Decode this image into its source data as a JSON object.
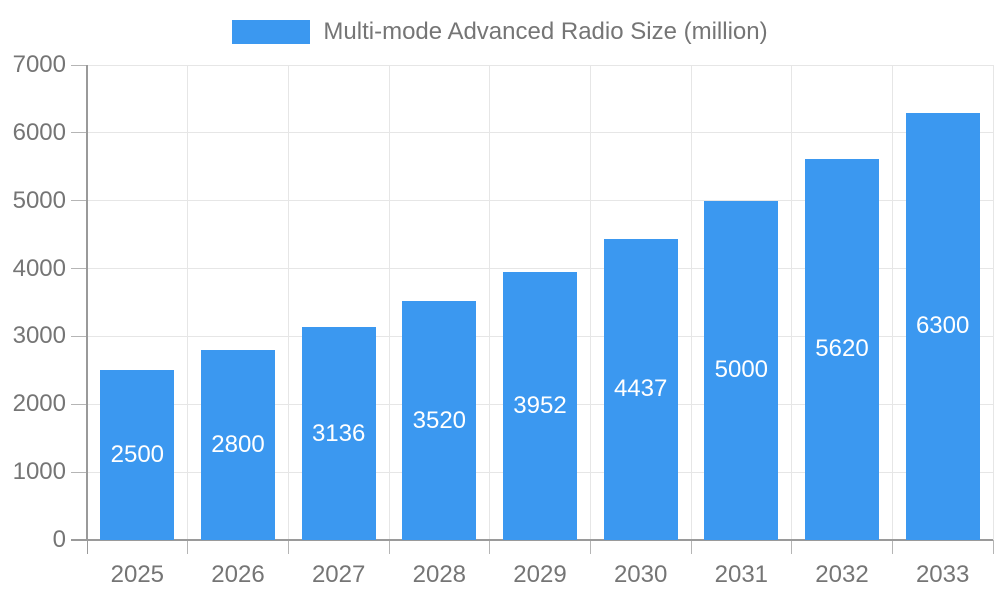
{
  "chart_data": {
    "type": "bar",
    "title": "Multi-mode Advanced Radio Size (million)",
    "legend": "Multi-mode Advanced Radio Size (million)",
    "legend_position": "top-center",
    "categories": [
      "2025",
      "2026",
      "2027",
      "2028",
      "2029",
      "2030",
      "2031",
      "2032",
      "2033"
    ],
    "values": [
      2500,
      2800,
      3136,
      3520,
      3952,
      4437,
      5000,
      5620,
      6300
    ],
    "bar_value_labels_visible": true,
    "xlabel": "",
    "ylabel": "",
    "ylim": [
      0,
      7000
    ],
    "ytick_step": 1000,
    "yticks": [
      0,
      1000,
      2000,
      3000,
      4000,
      5000,
      6000,
      7000
    ],
    "grid": true,
    "colors": {
      "bar": "#3B98F0",
      "grid": "#e6e6e6",
      "axis": "#9a9a9a",
      "tick": "#b5b5b5",
      "text": "#757575",
      "value_label": "#ffffff",
      "background": "#ffffff"
    }
  }
}
